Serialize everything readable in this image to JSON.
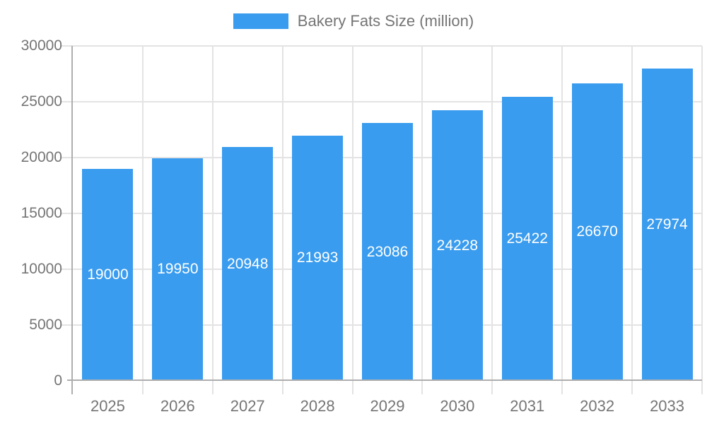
{
  "chart": {
    "colors": {
      "bar": "#3A9CEE",
      "grid_line": "#e3e3e3",
      "axis_line": "#aeaeae",
      "tick_text": "#757575",
      "legend_text": "#757575",
      "value_label_text": "#ffffff",
      "background": "#ffffff"
    }
  },
  "chart_data": {
    "type": "bar",
    "title": "Bakery Fats Size (million)",
    "legend": [
      "Bakery Fats Size (million)"
    ],
    "legend_position": "top-center",
    "categories": [
      "2025",
      "2026",
      "2027",
      "2028",
      "2029",
      "2030",
      "2031",
      "2032",
      "2033"
    ],
    "values": [
      19000,
      19950,
      20948,
      21993,
      23086,
      24228,
      25422,
      26670,
      27974
    ],
    "xlabel": "",
    "ylabel": "",
    "ylim": [
      0,
      30000
    ],
    "yticks": [
      0,
      5000,
      10000,
      15000,
      20000,
      25000,
      30000
    ],
    "grid": true,
    "value_labels_position": "inside-center",
    "value_labels_color": "#ffffff"
  }
}
